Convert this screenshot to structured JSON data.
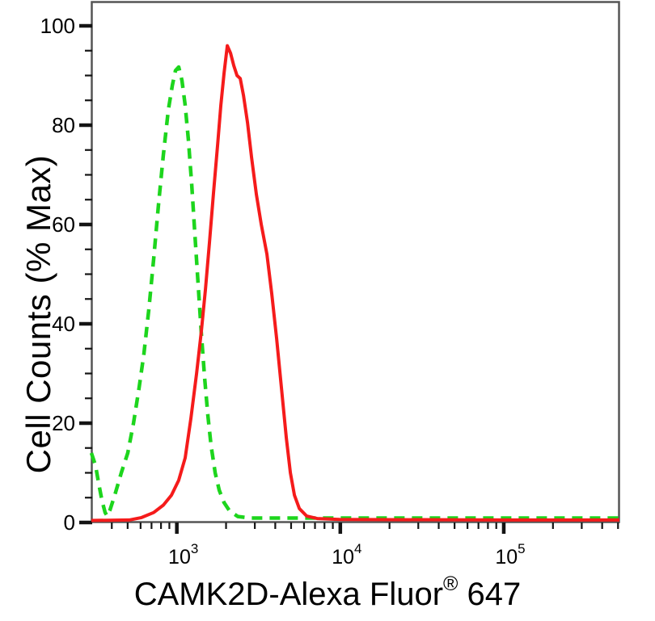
{
  "chart_data": {
    "type": "line",
    "subtype": "flow-cytometry-histogram-overlay",
    "title": "",
    "grid": false,
    "legend": "none",
    "x_axis": {
      "label": "CAMK2D-Alexa Fluor® 647",
      "label_parts": {
        "main": "CAMK2D-Alexa Fluor",
        "sup": "®",
        "end": " 647"
      },
      "scale": "log",
      "range": [
        300,
        510000
      ],
      "major_ticks": [
        {
          "value": 1000,
          "base": "10",
          "exp": "3"
        },
        {
          "value": 10000,
          "base": "10",
          "exp": "4"
        },
        {
          "value": 100000,
          "base": "10",
          "exp": "5"
        }
      ],
      "minor_ticks": [
        400,
        500,
        600,
        700,
        800,
        900,
        2000,
        3000,
        4000,
        5000,
        6000,
        7000,
        8000,
        9000,
        20000,
        30000,
        40000,
        50000,
        60000,
        70000,
        80000,
        90000,
        200000,
        300000,
        400000,
        500000
      ]
    },
    "y_axis": {
      "label": "Cell Counts (% Max)",
      "range": [
        0,
        100
      ],
      "major_ticks": [
        {
          "value": 0,
          "label": "0"
        },
        {
          "value": 20,
          "label": "20"
        },
        {
          "value": 40,
          "label": "40"
        },
        {
          "value": 60,
          "label": "60"
        },
        {
          "value": 80,
          "label": "80"
        },
        {
          "value": 100,
          "label": "100"
        }
      ],
      "minor_tick_step": 5
    },
    "series": [
      {
        "id": "control-dashed-green",
        "color": "#1dd51d",
        "line_style": "dashed",
        "peak": {
          "x": 1030,
          "y_percent": 91.7
        },
        "points": [
          [
            300,
            14
          ],
          [
            318,
            11.5
          ],
          [
            332,
            8
          ],
          [
            348,
            4.5
          ],
          [
            364,
            2
          ],
          [
            375,
            1.3
          ],
          [
            390,
            2.5
          ],
          [
            417,
            5.5
          ],
          [
            457,
            10
          ],
          [
            501,
            14
          ],
          [
            543,
            20
          ],
          [
            587,
            27
          ],
          [
            629,
            34
          ],
          [
            674,
            43
          ],
          [
            721,
            53
          ],
          [
            772,
            64
          ],
          [
            827,
            74
          ],
          [
            886,
            83
          ],
          [
            938,
            88
          ],
          [
            981,
            91
          ],
          [
            1027,
            91.7
          ],
          [
            1075,
            89
          ],
          [
            1125,
            84
          ],
          [
            1177,
            77
          ],
          [
            1233,
            68
          ],
          [
            1290,
            58
          ],
          [
            1350,
            48
          ],
          [
            1413,
            38
          ],
          [
            1479,
            29
          ],
          [
            1548,
            21.5
          ],
          [
            1620,
            15.5
          ],
          [
            1716,
            10
          ],
          [
            1816,
            6.5
          ],
          [
            1945,
            4
          ],
          [
            2106,
            2.3
          ],
          [
            2360,
            1.2
          ],
          [
            2830,
            0.9
          ],
          [
            4000,
            0.9
          ],
          [
            10000,
            0.9
          ],
          [
            100000,
            0.9
          ],
          [
            510000,
            0.9
          ]
        ]
      },
      {
        "id": "camk2d-solid-red",
        "color": "#f51b1b",
        "line_style": "solid",
        "peak": {
          "x": 2040,
          "y_percent": 96
        },
        "points": [
          [
            300,
            0.4
          ],
          [
            512,
            0.5
          ],
          [
            608,
            1
          ],
          [
            721,
            2
          ],
          [
            827,
            3.5
          ],
          [
            927,
            5.5
          ],
          [
            1027,
            8.5
          ],
          [
            1125,
            13
          ],
          [
            1219,
            21
          ],
          [
            1320,
            30
          ],
          [
            1413,
            38.5
          ],
          [
            1496,
            47
          ],
          [
            1584,
            56.5
          ],
          [
            1677,
            66.5
          ],
          [
            1775,
            76
          ],
          [
            1858,
            84
          ],
          [
            1945,
            90.5
          ],
          [
            2036,
            96
          ],
          [
            2131,
            94.5
          ],
          [
            2230,
            92
          ],
          [
            2333,
            90
          ],
          [
            2442,
            89.4
          ],
          [
            2556,
            86
          ],
          [
            2706,
            80.5
          ],
          [
            2865,
            73.5
          ],
          [
            3069,
            66
          ],
          [
            3285,
            60
          ],
          [
            3558,
            54
          ],
          [
            3811,
            46
          ],
          [
            4080,
            37
          ],
          [
            4368,
            27
          ],
          [
            4677,
            17
          ],
          [
            4951,
            10
          ],
          [
            5243,
            5.5
          ],
          [
            5614,
            2.8
          ],
          [
            6220,
            1.3
          ],
          [
            7213,
            0.8
          ],
          [
            9900,
            0.6
          ],
          [
            100000,
            0.5
          ],
          [
            510000,
            0.5
          ]
        ]
      }
    ]
  },
  "colors": {
    "background": "#ffffff",
    "axis_box": "#555555",
    "tick": "#141414",
    "text": "#000000",
    "green_series": "#1dd51d",
    "red_series": "#f51b1b"
  }
}
